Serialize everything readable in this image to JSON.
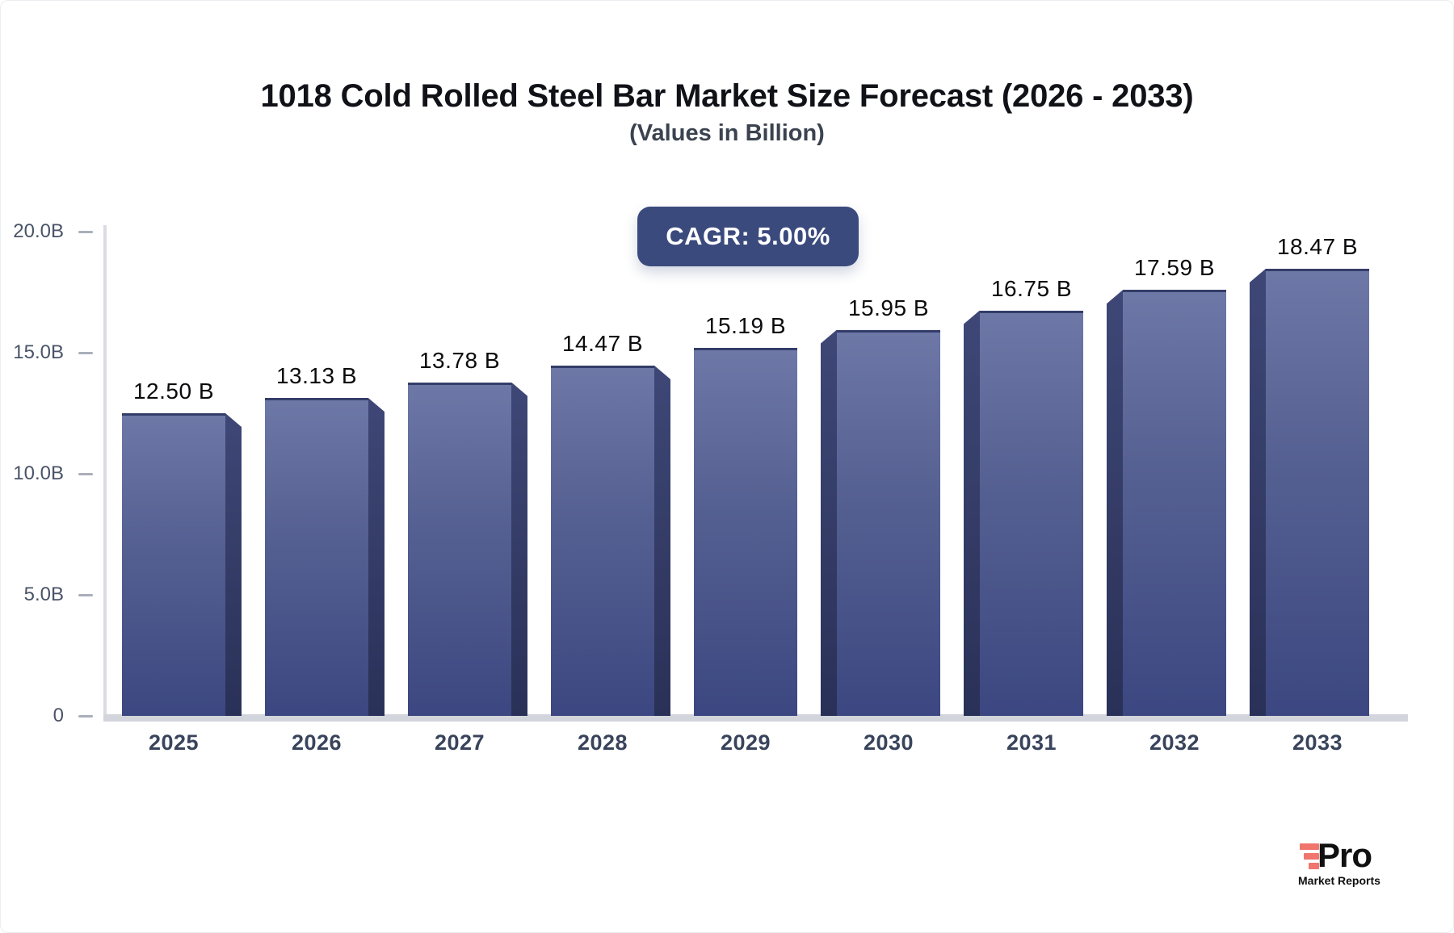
{
  "title": "1018 Cold Rolled Steel Bar Market Size Forecast (2026 - 2033)",
  "subtitle": "(Values in Billion)",
  "badge": {
    "label": "CAGR: 5.00%",
    "bg_color": "#3b4a7d",
    "text_color": "#ffffff"
  },
  "logo": {
    "name": "Pro",
    "tagline": "Market Reports",
    "accent_color": "#f0756d"
  },
  "chart_data": {
    "type": "bar",
    "title": "1018 Cold Rolled Steel Bar Market Size Forecast (2026 - 2033)",
    "subtitle": "(Values in Billion)",
    "categories": [
      "2025",
      "2026",
      "2027",
      "2028",
      "2029",
      "2030",
      "2031",
      "2032",
      "2033"
    ],
    "values": [
      12.5,
      13.13,
      13.78,
      14.47,
      15.19,
      15.95,
      16.75,
      17.59,
      18.47
    ],
    "value_labels": [
      "12.50 B",
      "13.13 B",
      "13.78 B",
      "14.47 B",
      "15.19 B",
      "15.95 B",
      "16.75 B",
      "17.59 B",
      "18.47 B"
    ],
    "cagr": "CAGR: 5.00%",
    "xlabel": "",
    "ylabel": "",
    "ylim": [
      0,
      20
    ],
    "y_ticks": [
      {
        "label": "0",
        "value": 0
      },
      {
        "label": "5.0B",
        "value": 5
      },
      {
        "label": "10.0B",
        "value": 10
      },
      {
        "label": "15.0B",
        "value": 15
      },
      {
        "label": "20.0B",
        "value": 20
      }
    ],
    "grid": false,
    "legend": false,
    "bar_color_top": "#6d78a7",
    "bar_color_bottom": "#3c4781",
    "bar_side_color": "#2d3562"
  }
}
